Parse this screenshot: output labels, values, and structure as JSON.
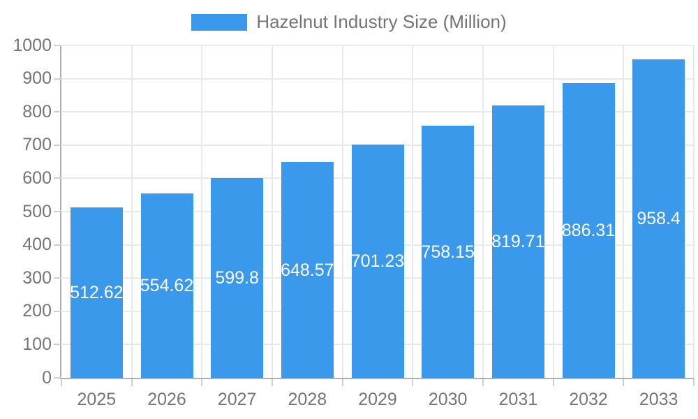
{
  "chart_data": {
    "type": "bar",
    "title": "Hazelnut Industry Size (Million)",
    "categories": [
      "2025",
      "2026",
      "2027",
      "2028",
      "2029",
      "2030",
      "2031",
      "2032",
      "2033"
    ],
    "series": [
      {
        "name": "Hazelnut Industry Size (Million)",
        "values": [
          512.62,
          554.62,
          599.8,
          648.57,
          701.23,
          758.15,
          819.71,
          886.31,
          958.4
        ],
        "value_labels": [
          "512.62",
          "554.62",
          "599.8",
          "648.57",
          "701.23",
          "758.15",
          "819.71",
          "886.31",
          "958.4"
        ]
      }
    ],
    "xlabel": "",
    "ylabel": "",
    "ylim": [
      0,
      1000
    ],
    "yticks": [
      0,
      100,
      200,
      300,
      400,
      500,
      600,
      700,
      800,
      900,
      1000
    ],
    "grid": true,
    "legend_position": "top",
    "colors": {
      "bar": "#3b99ec",
      "value_label": "#ffffff",
      "axis_text": "#757575",
      "gridline": "#e9e9e9",
      "axis_line": "#b0b0b0",
      "tick": "#cfcfcf",
      "background": "#ffffff"
    }
  }
}
